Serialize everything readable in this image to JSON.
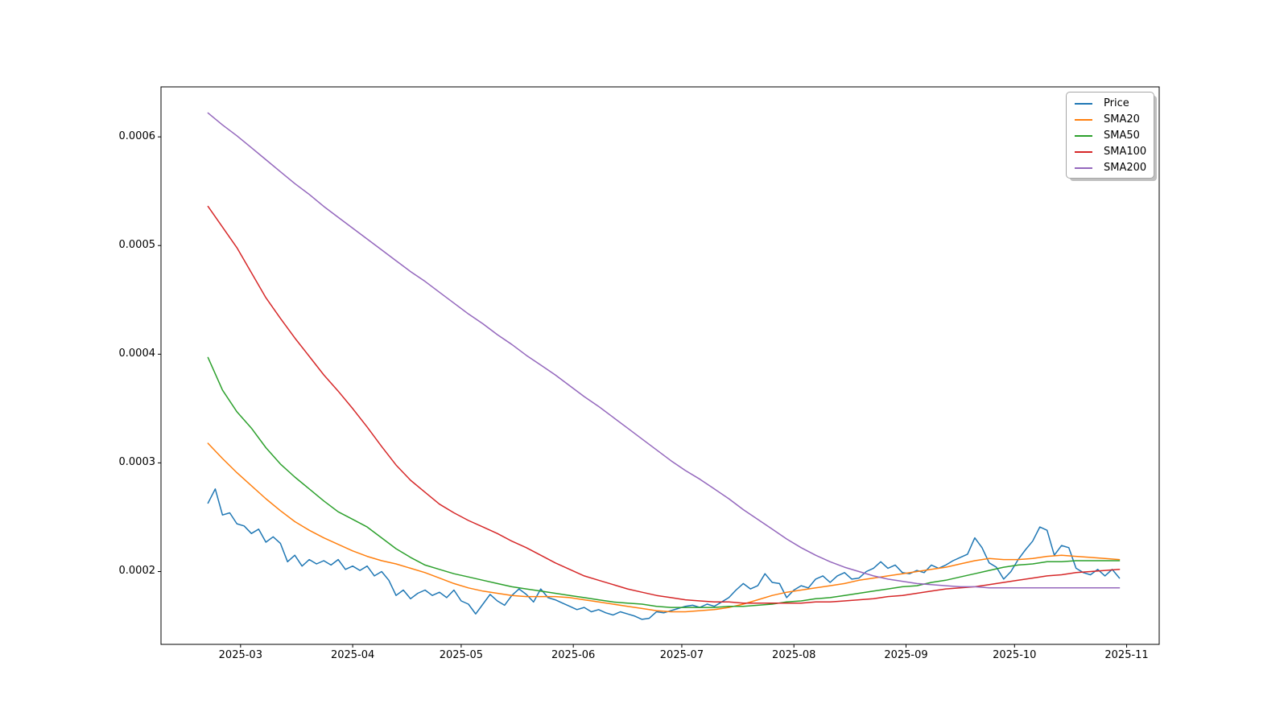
{
  "chart_data": {
    "type": "line",
    "title": "",
    "xlabel": "",
    "ylabel": "",
    "background_color": "#ffffff",
    "axes_edge_color": "#000000",
    "grid": false,
    "legend_position": "upper right",
    "xlim_dates": [
      "2025-02-07",
      "2025-11-10"
    ],
    "ylim": [
      0.000133,
      0.000646
    ],
    "x_ticks": [
      {
        "date": "2025-03-01",
        "label": "2025-03"
      },
      {
        "date": "2025-04-01",
        "label": "2025-04"
      },
      {
        "date": "2025-05-01",
        "label": "2025-05"
      },
      {
        "date": "2025-06-01",
        "label": "2025-06"
      },
      {
        "date": "2025-07-01",
        "label": "2025-07"
      },
      {
        "date": "2025-08-01",
        "label": "2025-08"
      },
      {
        "date": "2025-09-01",
        "label": "2025-09"
      },
      {
        "date": "2025-10-01",
        "label": "2025-10"
      },
      {
        "date": "2025-11-01",
        "label": "2025-11"
      }
    ],
    "y_ticks": [
      {
        "value": 0.0002,
        "label": "0.0002"
      },
      {
        "value": 0.0003,
        "label": "0.0003"
      },
      {
        "value": 0.0004,
        "label": "0.0004"
      },
      {
        "value": 0.0005,
        "label": "0.0005"
      },
      {
        "value": 0.0006,
        "label": "0.0006"
      }
    ],
    "series": [
      {
        "name": "Price",
        "color": "#1f77b4",
        "start_date": "2025-02-20",
        "step_days": 2,
        "values": [
          0.000263,
          0.000276,
          0.000252,
          0.000254,
          0.000244,
          0.000242,
          0.000235,
          0.000239,
          0.000227,
          0.000232,
          0.000226,
          0.000209,
          0.000215,
          0.000205,
          0.000211,
          0.000207,
          0.00021,
          0.000206,
          0.000211,
          0.000202,
          0.000205,
          0.000201,
          0.000205,
          0.000196,
          0.0002,
          0.000192,
          0.000178,
          0.000183,
          0.000175,
          0.00018,
          0.000183,
          0.000178,
          0.000181,
          0.000176,
          0.000183,
          0.000173,
          0.00017,
          0.000161,
          0.00017,
          0.000179,
          0.000173,
          0.000169,
          0.000178,
          0.000184,
          0.000179,
          0.000172,
          0.000184,
          0.000176,
          0.000174,
          0.000171,
          0.000168,
          0.000165,
          0.000167,
          0.000163,
          0.000165,
          0.000162,
          0.00016,
          0.000163,
          0.000161,
          0.000159,
          0.000156,
          0.000157,
          0.000163,
          0.000162,
          0.000164,
          0.000166,
          0.000168,
          0.000169,
          0.000167,
          0.00017,
          0.000168,
          0.000172,
          0.000176,
          0.000183,
          0.000189,
          0.000184,
          0.000187,
          0.000198,
          0.00019,
          0.000189,
          0.000176,
          0.000183,
          0.000187,
          0.000185,
          0.000193,
          0.000196,
          0.00019,
          0.000196,
          0.000199,
          0.000193,
          0.000194,
          0.0002,
          0.000203,
          0.000209,
          0.000203,
          0.000206,
          0.000199,
          0.000198,
          0.000201,
          0.000199,
          0.000206,
          0.000203,
          0.000206,
          0.00021,
          0.000213,
          0.000216,
          0.000231,
          0.000222,
          0.000208,
          0.000204,
          0.000193,
          0.0002,
          0.000211,
          0.00022,
          0.000228,
          0.000241,
          0.000238,
          0.000215,
          0.000224,
          0.000222,
          0.000203,
          0.000199,
          0.000197,
          0.000202,
          0.000196,
          0.000202,
          0.000194
        ]
      },
      {
        "name": "SMA20",
        "color": "#ff7f0e",
        "start_date": "2025-02-20",
        "step_days": 4,
        "values": [
          0.000318,
          0.000304,
          0.000291,
          0.000279,
          0.000267,
          0.000256,
          0.000246,
          0.000238,
          0.000231,
          0.000225,
          0.000219,
          0.000214,
          0.00021,
          0.000207,
          0.000203,
          0.000199,
          0.000194,
          0.000189,
          0.000185,
          0.000182,
          0.00018,
          0.000178,
          0.000177,
          0.000177,
          0.000177,
          0.000176,
          0.000174,
          0.000172,
          0.00017,
          0.000168,
          0.000166,
          0.000164,
          0.000163,
          0.000163,
          0.000164,
          0.000165,
          0.000167,
          0.00017,
          0.000174,
          0.000178,
          0.000181,
          0.000183,
          0.000185,
          0.000187,
          0.000189,
          0.000192,
          0.000194,
          0.000196,
          0.000198,
          0.0002,
          0.000202,
          0.000204,
          0.000207,
          0.00021,
          0.000212,
          0.000211,
          0.000211,
          0.000212,
          0.000214,
          0.000215,
          0.000214,
          0.000213,
          0.000212,
          0.000211
        ]
      },
      {
        "name": "SMA50",
        "color": "#2ca02c",
        "start_date": "2025-02-20",
        "step_days": 4,
        "values": [
          0.000397,
          0.000367,
          0.000347,
          0.000332,
          0.000314,
          0.000299,
          0.000287,
          0.000276,
          0.000265,
          0.000255,
          0.000248,
          0.000241,
          0.000231,
          0.000221,
          0.000213,
          0.000206,
          0.000202,
          0.000198,
          0.000195,
          0.000192,
          0.000189,
          0.000186,
          0.000184,
          0.000182,
          0.00018,
          0.000178,
          0.000176,
          0.000174,
          0.000172,
          0.000171,
          0.00017,
          0.000168,
          0.000167,
          0.000167,
          0.000167,
          0.000167,
          0.000168,
          0.000168,
          0.000169,
          0.00017,
          0.000172,
          0.000173,
          0.000175,
          0.000176,
          0.000178,
          0.00018,
          0.000182,
          0.000184,
          0.000186,
          0.000187,
          0.00019,
          0.000192,
          0.000195,
          0.000198,
          0.000201,
          0.000204,
          0.000206,
          0.000207,
          0.000209,
          0.000209,
          0.00021,
          0.00021,
          0.00021,
          0.00021
        ]
      },
      {
        "name": "SMA100",
        "color": "#d62728",
        "start_date": "2025-02-20",
        "step_days": 4,
        "values": [
          0.000536,
          0.000517,
          0.000498,
          0.000475,
          0.000452,
          0.000433,
          0.000415,
          0.000398,
          0.000381,
          0.000366,
          0.00035,
          0.000333,
          0.000315,
          0.000298,
          0.000284,
          0.000273,
          0.000262,
          0.000254,
          0.000247,
          0.000241,
          0.000235,
          0.000228,
          0.000222,
          0.000215,
          0.000208,
          0.000202,
          0.000196,
          0.000192,
          0.000188,
          0.000184,
          0.000181,
          0.000178,
          0.000176,
          0.000174,
          0.000173,
          0.000172,
          0.000172,
          0.000171,
          0.000171,
          0.000171,
          0.000171,
          0.000171,
          0.000172,
          0.000172,
          0.000173,
          0.000174,
          0.000175,
          0.000177,
          0.000178,
          0.00018,
          0.000182,
          0.000184,
          0.000185,
          0.000186,
          0.000188,
          0.00019,
          0.000192,
          0.000194,
          0.000196,
          0.000197,
          0.000199,
          0.0002,
          0.000201,
          0.000202
        ]
      },
      {
        "name": "SMA200",
        "color": "#9467bd",
        "start_date": "2025-02-20",
        "step_days": 4,
        "values": [
          0.000622,
          0.000611,
          0.000601,
          0.00059,
          0.000579,
          0.000568,
          0.000557,
          0.000547,
          0.000536,
          0.000526,
          0.000516,
          0.000506,
          0.000496,
          0.000486,
          0.000476,
          0.000467,
          0.000457,
          0.000447,
          0.000437,
          0.000428,
          0.000418,
          0.000409,
          0.000399,
          0.00039,
          0.000381,
          0.000371,
          0.000361,
          0.000352,
          0.000342,
          0.000332,
          0.000322,
          0.000312,
          0.000302,
          0.000293,
          0.000285,
          0.000276,
          0.000267,
          0.000257,
          0.000248,
          0.000239,
          0.00023,
          0.000222,
          0.000215,
          0.000209,
          0.000204,
          0.0002,
          0.000196,
          0.000193,
          0.000191,
          0.000189,
          0.000188,
          0.000187,
          0.000186,
          0.000186,
          0.000185,
          0.000185,
          0.000185,
          0.000185,
          0.000185,
          0.000185,
          0.000185,
          0.000185,
          0.000185,
          0.000185
        ]
      }
    ]
  }
}
